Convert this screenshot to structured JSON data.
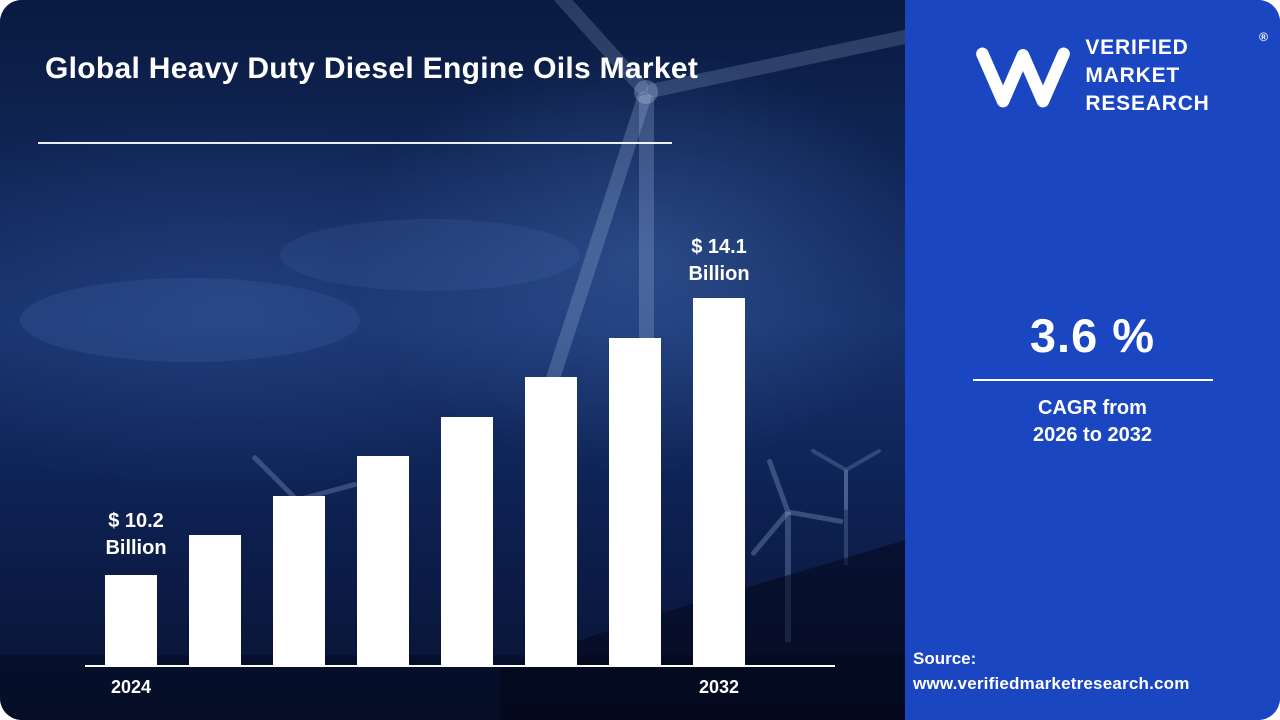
{
  "title": "Global Heavy Duty Diesel Engine Oils Market",
  "colors": {
    "sidebar_bg": "#1b46c2",
    "bar": "#ffffff",
    "text": "#ffffff",
    "main_bg": "#0d2050"
  },
  "chart_data": {
    "type": "bar",
    "title": "Global Heavy Duty Diesel Engine Oils Market",
    "categories": [
      "2024",
      "",
      "",
      "",
      "",
      "",
      "",
      "2032"
    ],
    "values": [
      10.2,
      10.76,
      11.31,
      11.87,
      12.43,
      12.99,
      13.54,
      14.1
    ],
    "ylim": [
      10,
      14.5
    ],
    "grid": false,
    "legend": false,
    "bar_color": "#ffffff",
    "x_axis": {
      "first": "2024",
      "last": "2032"
    },
    "first_annotation": {
      "line1": "$ 10.2",
      "line2": "Billion"
    },
    "last_annotation": {
      "line1": "$ 14.1",
      "line2": "Billion"
    }
  },
  "sidebar": {
    "brand_lines": [
      "VERIFIED",
      "MARKET",
      "RESEARCH"
    ],
    "registered_mark": "®",
    "cagr_value": "3.6 %",
    "cagr_label_line1": "CAGR from",
    "cagr_label_line2": "2026 to 2032",
    "source_label": "Source:",
    "source_url": "www.verifiedmarketresearch.com"
  }
}
